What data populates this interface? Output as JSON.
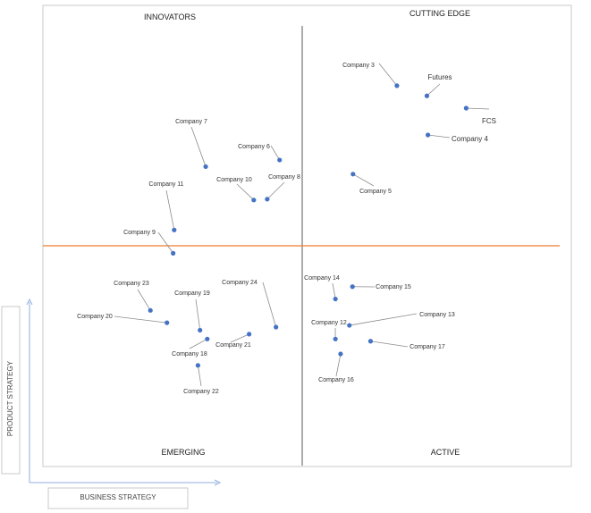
{
  "chart_data": {
    "type": "scatter",
    "quadrant_labels": {
      "top_left": "INNOVATORS",
      "top_right": "CUTTING EDGE",
      "bottom_left": "EMERGING",
      "bottom_right": "ACTIVE"
    },
    "x_axis_label": "BUSINESS STRATEGY",
    "y_axis_label": "PRODUCT STRATEGY",
    "x_range": [
      0,
      100
    ],
    "y_range": [
      0,
      100
    ],
    "points": [
      {
        "label": "Company 3",
        "x": 68.5,
        "y": 86.4
      },
      {
        "label": "Futures",
        "x": 74.3,
        "y": 84.1
      },
      {
        "label": "FCS",
        "x": 81.9,
        "y": 81.3
      },
      {
        "label": "Company 4",
        "x": 74.5,
        "y": 75.2
      },
      {
        "label": "Company 5",
        "x": 60.0,
        "y": 66.3
      },
      {
        "label": "Company 7",
        "x": 31.5,
        "y": 68.0
      },
      {
        "label": "Company 6",
        "x": 45.8,
        "y": 69.5
      },
      {
        "label": "Company 8",
        "x": 43.4,
        "y": 60.6
      },
      {
        "label": "Company 10",
        "x": 40.8,
        "y": 60.4
      },
      {
        "label": "Company 11",
        "x": 25.4,
        "y": 53.6
      },
      {
        "label": "Company 9",
        "x": 25.2,
        "y": 48.3
      },
      {
        "label": "Company 14",
        "x": 56.6,
        "y": 37.9
      },
      {
        "label": "Company 15",
        "x": 59.9,
        "y": 40.7
      },
      {
        "label": "Company 13",
        "x": 59.3,
        "y": 31.9
      },
      {
        "label": "Company 12",
        "x": 56.6,
        "y": 28.8
      },
      {
        "label": "Company 17",
        "x": 63.4,
        "y": 28.3
      },
      {
        "label": "Company 16",
        "x": 57.6,
        "y": 25.4
      },
      {
        "label": "Company 23",
        "x": 20.8,
        "y": 35.3
      },
      {
        "label": "Company 20",
        "x": 24.0,
        "y": 32.5
      },
      {
        "label": "Company 19",
        "x": 30.4,
        "y": 30.8
      },
      {
        "label": "Company 24",
        "x": 45.1,
        "y": 31.5
      },
      {
        "label": "Company 21",
        "x": 39.9,
        "y": 29.9
      },
      {
        "label": "Company 18",
        "x": 31.8,
        "y": 28.8
      },
      {
        "label": "Company 22",
        "x": 30.0,
        "y": 22.8
      }
    ],
    "colors": {
      "point": "#4472c4",
      "midline": "#ed7d31",
      "divider": "#595959",
      "axis_arrow": "#8fb0de"
    }
  }
}
